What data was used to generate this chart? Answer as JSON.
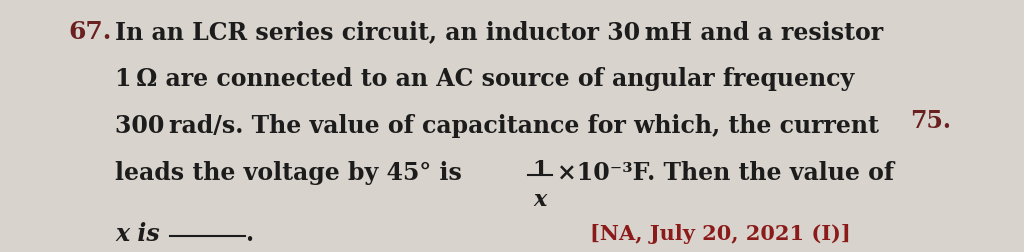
{
  "background_color": "#d8d3cc",
  "question_number": "67.",
  "line1": "In an LCR series circuit, an inductor 30 mH and a resistor",
  "line2": "1 Ω are connected to an AC source of angular frequency",
  "line3": "300 rad/s. The value of capacitance for which, the current",
  "line4_pre": "leads the voltage by 45° is",
  "frac_num": "1",
  "frac_den": "x",
  "line4_post": "×10⁻³F. Then the value of",
  "line5a": "x is",
  "line5b": "_____.",
  "side_number": "75.",
  "citation": "[NA, July 20, 2021 (I)]",
  "citation_color": "#8b1a1a",
  "number_color": "#6b2020",
  "main_text_color": "#1c1c1c",
  "fontsize_main": 17,
  "fontsize_side": 15,
  "fontsize_citation": 15
}
